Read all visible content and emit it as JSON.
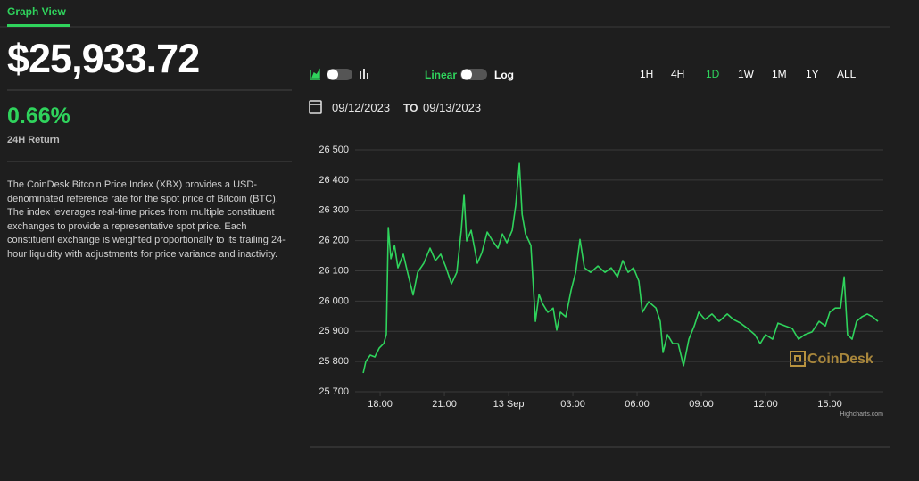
{
  "tab": "Graph View",
  "price": "$25,933.72",
  "change": "0.66%",
  "change_label": "24H Return",
  "description": "The CoinDesk Bitcoin Price Index (XBX) provides a USD-denominated reference rate for the spot price of Bitcoin (BTC). The index leverages real-time prices from multiple constituent exchanges to provide a representative spot price. Each constituent exchange is weighted proportionally to its trailing 24-hour liquidity with adjustments for price variance and inactivity.",
  "scale_options": [
    "Linear",
    "Log"
  ],
  "ranges": [
    "1H",
    "4H",
    "1D",
    "1W",
    "1M",
    "1Y",
    "ALL"
  ],
  "active_range": "1D",
  "date_from": "09/12/2023",
  "date_sep": "TO",
  "date_to": "09/13/2023",
  "chart_data": {
    "type": "line",
    "color": "#2fd35c",
    "grid": true,
    "watermark": "CoinDesk",
    "credit": "Highcharts.com",
    "xlim": [
      16.83,
      41.5
    ],
    "xticks": [
      {
        "value": 18,
        "label": "18:00"
      },
      {
        "value": 21,
        "label": "21:00"
      },
      {
        "value": 24,
        "label": "13 Sep"
      },
      {
        "value": 27,
        "label": "03:00"
      },
      {
        "value": 30,
        "label": "06:00"
      },
      {
        "value": 33,
        "label": "09:00"
      },
      {
        "value": 36,
        "label": "12:00"
      },
      {
        "value": 39,
        "label": "15:00"
      }
    ],
    "ylim": [
      25700,
      26500
    ],
    "yticks": [
      {
        "value": 25700,
        "label": "25 700"
      },
      {
        "value": 25800,
        "label": "25 800"
      },
      {
        "value": 25900,
        "label": "25 900"
      },
      {
        "value": 26000,
        "label": "26 000"
      },
      {
        "value": 26100,
        "label": "26 100"
      },
      {
        "value": 26200,
        "label": "26 200"
      },
      {
        "value": 26300,
        "label": "26 300"
      },
      {
        "value": 26400,
        "label": "26 400"
      },
      {
        "value": 26500,
        "label": "26 500"
      }
    ],
    "x": [
      17.21,
      17.33,
      17.54,
      17.75,
      17.96,
      18.17,
      18.29,
      18.38,
      18.5,
      18.67,
      18.83,
      19.08,
      19.33,
      19.54,
      19.75,
      20.04,
      20.33,
      20.58,
      20.83,
      21.08,
      21.33,
      21.58,
      21.79,
      21.92,
      22.04,
      22.25,
      22.54,
      22.75,
      23.0,
      23.25,
      23.5,
      23.71,
      23.92,
      24.17,
      24.33,
      24.5,
      24.63,
      24.79,
      25.04,
      25.25,
      25.42,
      25.58,
      25.83,
      26.08,
      26.25,
      26.42,
      26.67,
      26.92,
      27.13,
      27.33,
      27.54,
      27.83,
      28.17,
      28.5,
      28.79,
      29.08,
      29.33,
      29.58,
      29.83,
      30.08,
      30.25,
      30.54,
      30.88,
      31.08,
      31.21,
      31.42,
      31.67,
      31.92,
      32.17,
      32.42,
      32.67,
      32.88,
      33.17,
      33.5,
      33.83,
      34.21,
      34.5,
      34.83,
      35.17,
      35.5,
      35.75,
      36.0,
      36.33,
      36.58,
      36.92,
      37.25,
      37.54,
      37.83,
      38.17,
      38.5,
      38.79,
      39.0,
      39.25,
      39.5,
      39.67,
      39.83,
      40.04,
      40.25,
      40.5,
      40.75,
      41.0,
      41.25
    ],
    "values": [
      25762,
      25800,
      25821,
      25815,
      25845,
      25860,
      25890,
      26243,
      26140,
      26184,
      26110,
      26155,
      26080,
      26020,
      26095,
      26125,
      26175,
      26134,
      26155,
      26110,
      26057,
      26095,
      26234,
      26352,
      26199,
      26234,
      26125,
      26160,
      26228,
      26199,
      26175,
      26222,
      26193,
      26234,
      26316,
      26455,
      26287,
      26222,
      26184,
      25933,
      26022,
      25992,
      25963,
      25977,
      25904,
      25963,
      25948,
      26036,
      26095,
      26204,
      26110,
      26095,
      26116,
      26095,
      26110,
      26080,
      26134,
      26095,
      26110,
      26066,
      25963,
      25998,
      25977,
      25933,
      25830,
      25889,
      25859,
      25859,
      25786,
      25874,
      25918,
      25963,
      25939,
      25957,
      25933,
      25957,
      25939,
      25927,
      25909,
      25889,
      25859,
      25889,
      25874,
      25927,
      25918,
      25909,
      25874,
      25889,
      25898,
      25933,
      25918,
      25963,
      25977,
      25977,
      26080,
      25889,
      25874,
      25933,
      25948,
      25957,
      25948,
      25933
    ]
  }
}
